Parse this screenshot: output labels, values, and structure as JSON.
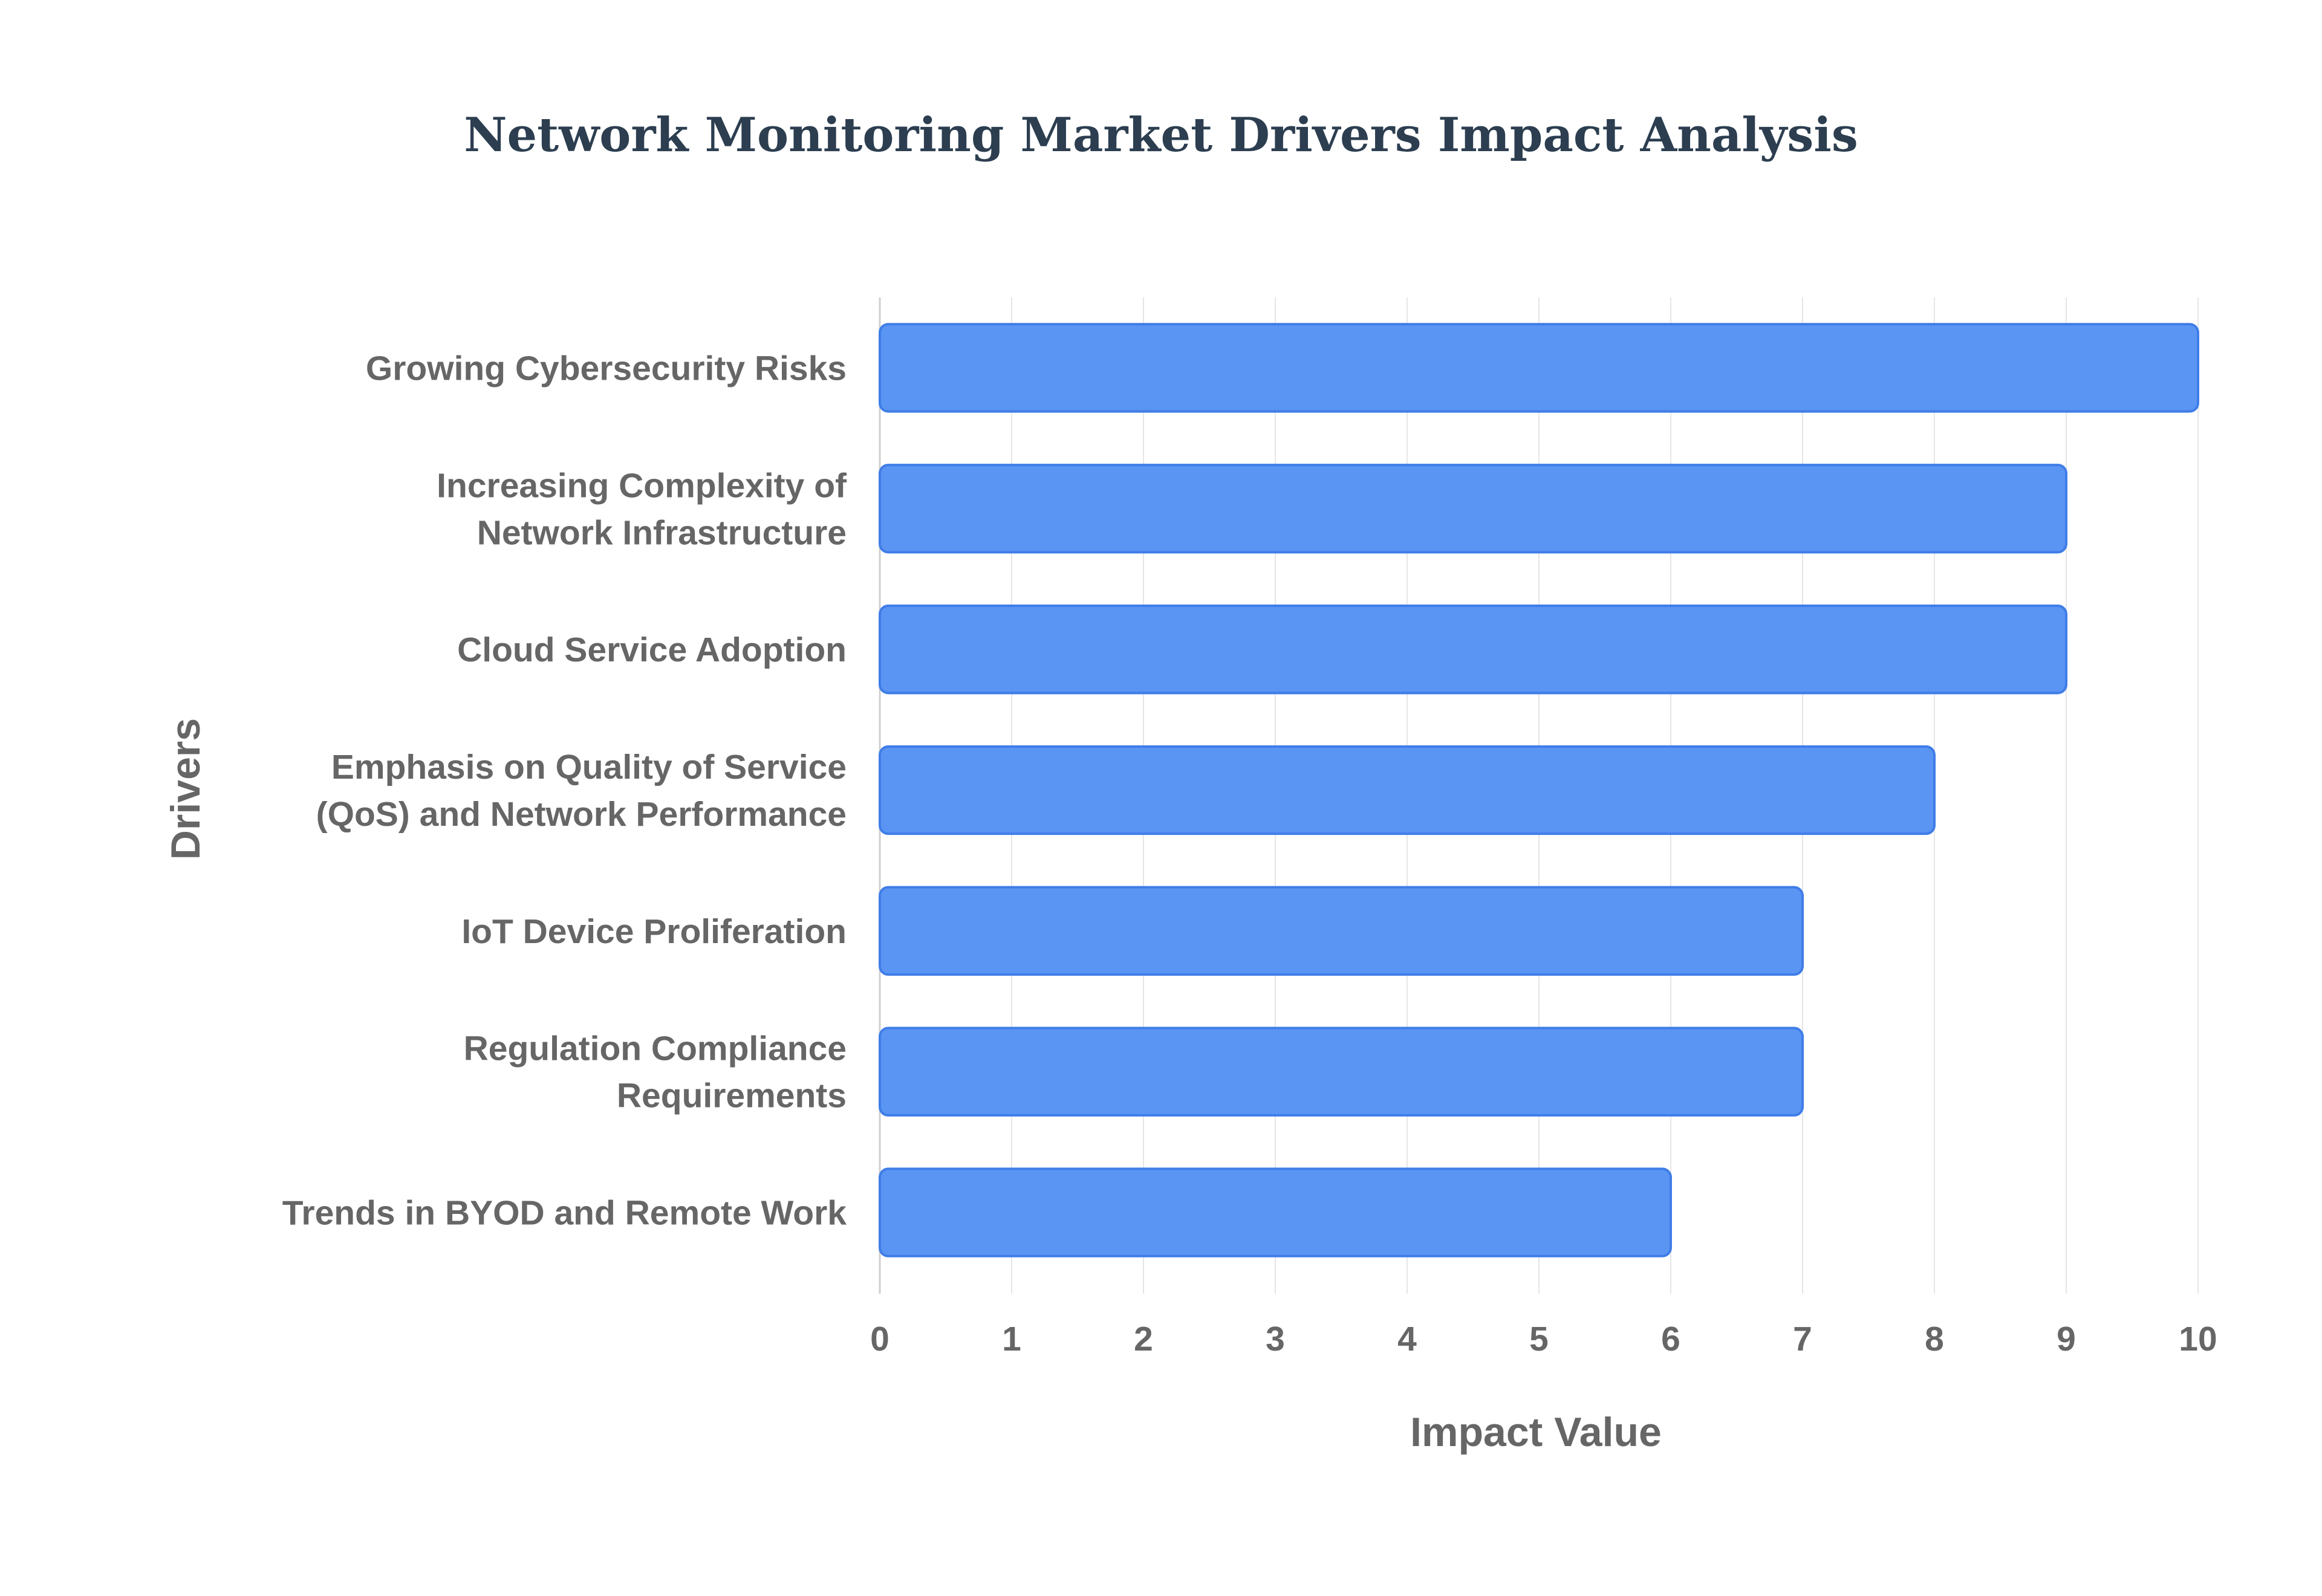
{
  "chart_data": {
    "type": "bar",
    "orientation": "horizontal",
    "title": "Network Monitoring Market Drivers Impact Analysis",
    "xlabel": "Impact Value",
    "ylabel": "Drivers",
    "xlim": [
      0,
      10
    ],
    "x_ticks": [
      0,
      1,
      2,
      3,
      4,
      5,
      6,
      7,
      8,
      9,
      10
    ],
    "grid": true,
    "legend": "none",
    "bar_color": "#5b95f3",
    "bar_border_color": "#3f7de8",
    "categories": [
      [
        "Growing Cybersecurity Risks"
      ],
      [
        "Increasing Complexity of",
        "Network Infrastructure"
      ],
      [
        "Cloud Service Adoption"
      ],
      [
        "Emphasis on Quality of Service",
        "(QoS) and Network Performance"
      ],
      [
        "IoT Device Proliferation"
      ],
      [
        "Regulation Compliance",
        "Requirements"
      ],
      [
        "Trends in BYOD and Remote Work"
      ]
    ],
    "values": [
      10,
      9,
      9,
      8,
      7,
      7,
      6
    ]
  }
}
